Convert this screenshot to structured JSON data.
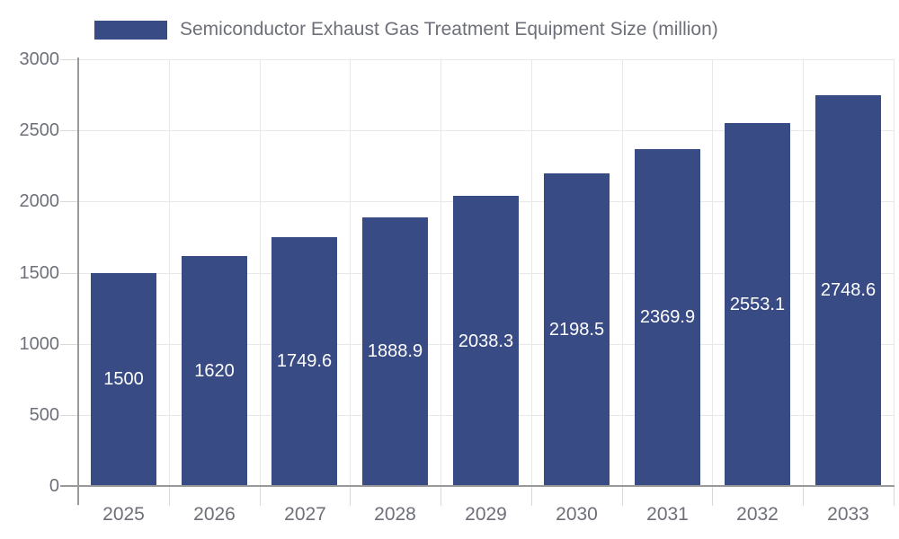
{
  "chart_data": {
    "type": "bar",
    "title": "Semiconductor Exhaust Gas Treatment Equipment Size (million)",
    "series_name": "Semiconductor Exhaust Gas Treatment Equipment Size (million)",
    "categories": [
      "2025",
      "2026",
      "2027",
      "2028",
      "2029",
      "2030",
      "2031",
      "2032",
      "2033"
    ],
    "values": [
      1500,
      1620,
      1749.6,
      1888.9,
      2038.3,
      2198.5,
      2369.9,
      2553.1,
      2748.6
    ],
    "value_labels": [
      "1500",
      "1620",
      "1749.6",
      "1888.9",
      "2038.3",
      "2198.5",
      "2369.9",
      "2553.1",
      "2748.6"
    ],
    "xlabel": "",
    "ylabel": "",
    "ylim": [
      0,
      3000
    ],
    "yticks": [
      0,
      500,
      1000,
      1500,
      2000,
      2500,
      3000
    ],
    "grid": true,
    "legend_position": "top-left",
    "colors": {
      "bar": "#394b85",
      "grid": "#e8e8e8",
      "tick": "#d9d9d9",
      "axis_line": "#999999",
      "axis_label": "#6e7079",
      "legend_text": "#6e7079",
      "value_label": "#ffffff",
      "background": "#ffffff"
    }
  }
}
